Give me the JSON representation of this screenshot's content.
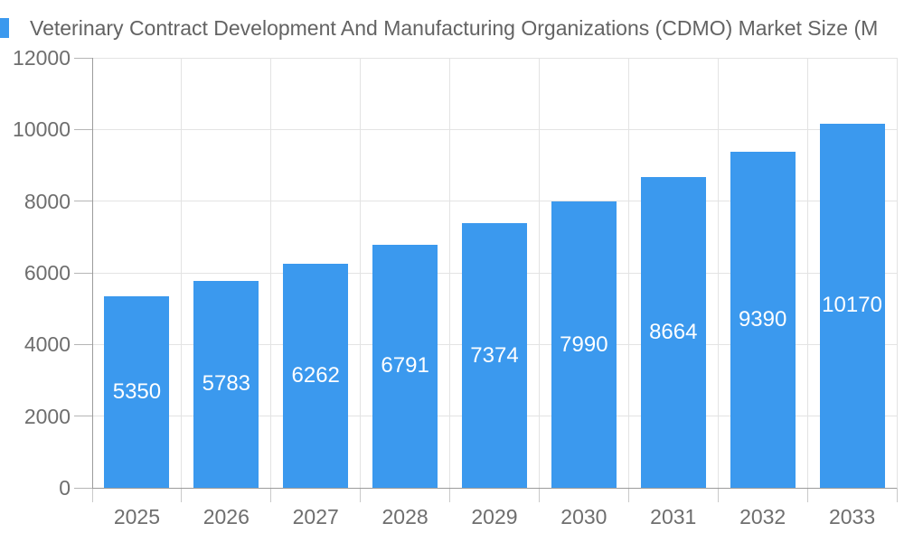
{
  "header": {
    "legend_marker_color": "#3B99EE"
  },
  "chart_data": {
    "type": "bar",
    "title": "Veterinary Contract Development And Manufacturing Organizations (CDMO) Market Size (M",
    "categories": [
      "2025",
      "2026",
      "2027",
      "2028",
      "2029",
      "2030",
      "2031",
      "2032",
      "2033"
    ],
    "values": [
      5350,
      5783,
      6262,
      6791,
      7374,
      7990,
      8664,
      9390,
      10170
    ],
    "xlabel": "",
    "ylabel": "",
    "ylim": [
      0,
      12000
    ],
    "yticks": [
      0,
      2000,
      4000,
      6000,
      8000,
      10000,
      12000
    ],
    "grid": true,
    "legend_position": "top-left",
    "bar_color": "#3B99EE",
    "bar_label_color": "#FFFFFF",
    "bar_labels_inside": true
  }
}
